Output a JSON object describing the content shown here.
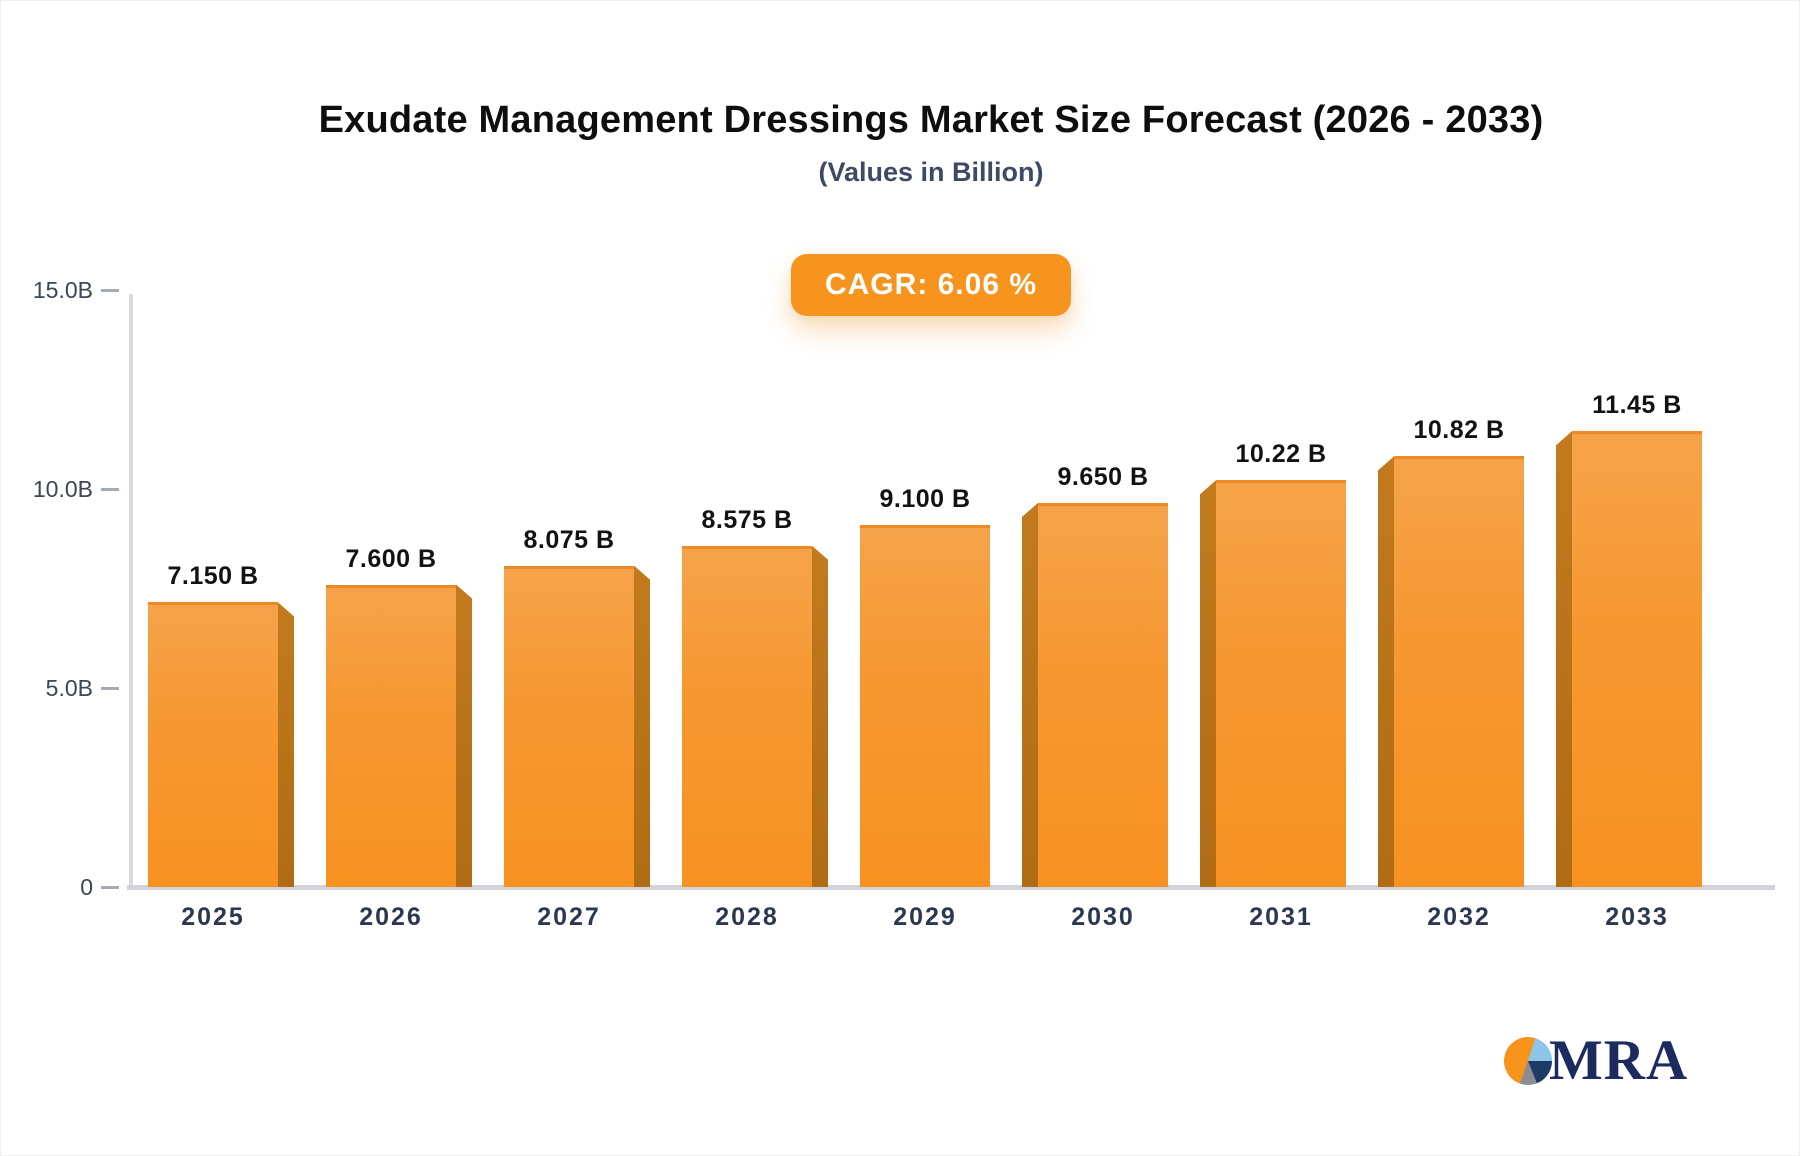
{
  "page": {
    "title": "Exudate Management Dressings Market Size Forecast (2026 - 2033)",
    "subtitle": "(Values in Billion)",
    "cagr_label": "CAGR: 6.06 %",
    "logo_text": "MRA"
  },
  "chart_data": {
    "type": "bar",
    "title": "Exudate Management Dressings Market Size Forecast (2026 - 2033)",
    "subtitle": "(Values in Billion)",
    "cagr": "6.06 %",
    "unit": "Billion",
    "categories": [
      "2025",
      "2026",
      "2027",
      "2028",
      "2029",
      "2030",
      "2031",
      "2032",
      "2033"
    ],
    "values": [
      7.15,
      7.6,
      8.075,
      8.575,
      9.1,
      9.65,
      10.22,
      10.82,
      11.45
    ],
    "value_labels": [
      "7.150 B",
      "7.600 B",
      "8.075 B",
      "8.575 B",
      "9.100 B",
      "9.650 B",
      "10.22 B",
      "10.82 B",
      "11.45 B"
    ],
    "ylim": [
      0,
      15
    ],
    "yticks": [
      {
        "label": "15.0B",
        "value": 15.0
      },
      {
        "label": "10.0B",
        "value": 10.0
      },
      {
        "label": "5.0B",
        "value": 5.0
      },
      {
        "label": "0",
        "value": 0
      }
    ],
    "grid": false,
    "legend": false,
    "colors": {
      "bar_face_top": "#F5A34A",
      "bar_face_bottom": "#F79222",
      "bar_side": "#B9731A",
      "axis": "#D9D9DF",
      "tick_label": "#3B4656",
      "value_label": "#121212",
      "x_label": "#2C3850",
      "badge_bg": "#F7941E",
      "badge_text": "#FFFFFF"
    }
  }
}
